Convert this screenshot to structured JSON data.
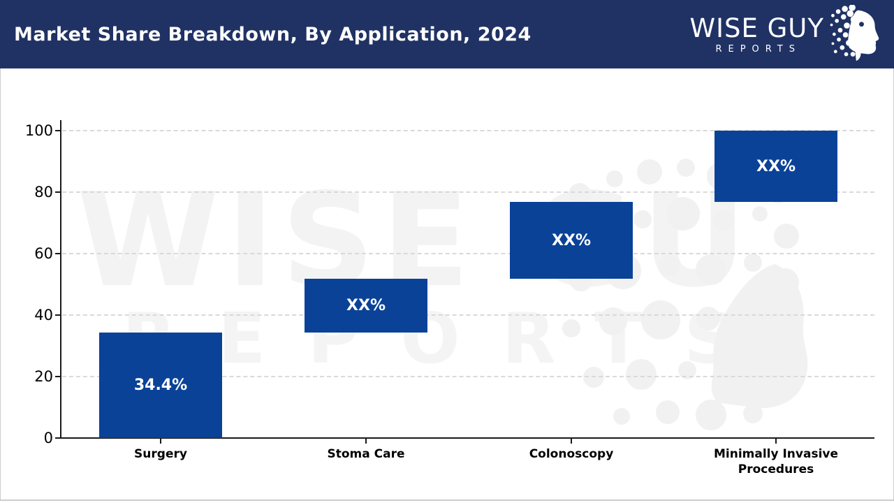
{
  "header": {
    "title": "Market Share Breakdown, By Application, 2024",
    "bg_color": "#203264",
    "logo": {
      "name": "WISE GUY",
      "sub": "REPORTS"
    }
  },
  "watermark": {
    "line1": "WISE GU",
    "line2": "REPORTS"
  },
  "chart_data": {
    "type": "bar",
    "subtype": "waterfall",
    "title": "Market Share Breakdown, By Application, 2024",
    "categories": [
      "Surgery",
      "Stoma Care",
      "Colonoscopy",
      "Minimally Invasive Procedures"
    ],
    "segments": [
      {
        "category": "Surgery",
        "start": 0,
        "end": 34.4,
        "label": "34.4%"
      },
      {
        "category": "Stoma Care",
        "start": 34.4,
        "end": 51.8,
        "label": "XX%"
      },
      {
        "category": "Colonoscopy",
        "start": 51.8,
        "end": 76.8,
        "label": "XX%"
      },
      {
        "category": "Minimally Invasive Procedures",
        "start": 76.8,
        "end": 100,
        "label": "XX%"
      }
    ],
    "ylim": [
      0,
      100
    ],
    "yticks": [
      0,
      20,
      40,
      60,
      80,
      100
    ],
    "xlabel": "",
    "ylabel": "",
    "grid": "horizontal-dashed",
    "legend": "none",
    "bar_color": "#0a4298",
    "bar_label_color": "#ffffff",
    "axis_color": "#1a1a1a",
    "gridline_color": "#d9d9d9"
  }
}
